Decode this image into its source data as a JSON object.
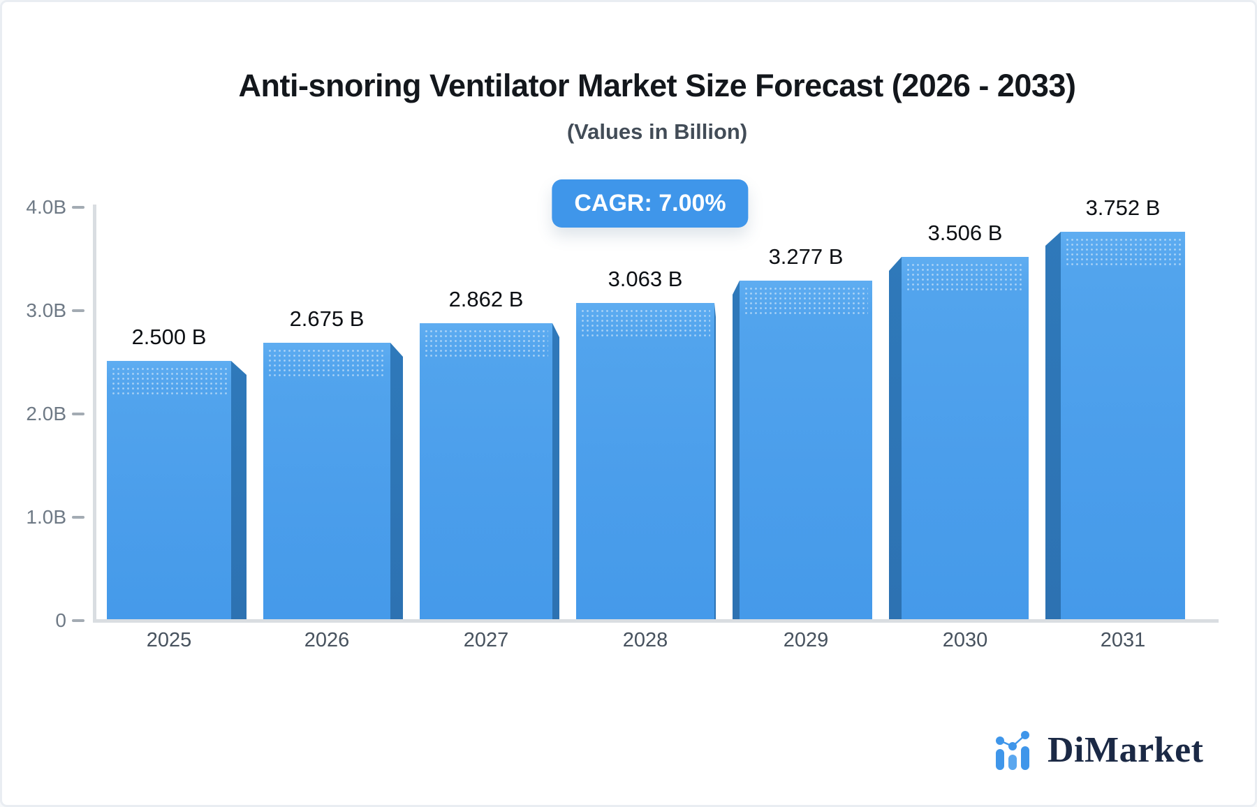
{
  "header": {
    "title": "Anti-snoring Ventilator Market Size Forecast (2026 - 2033)",
    "subtitle": "(Values in Billion)"
  },
  "badge": {
    "label": "CAGR: 7.00%",
    "color": "#3f96ea"
  },
  "chart_data": {
    "type": "bar",
    "categories": [
      "2025",
      "2026",
      "2027",
      "2028",
      "2029",
      "2030",
      "2031"
    ],
    "values": [
      2.5,
      2.675,
      2.862,
      3.063,
      3.277,
      3.506,
      3.752
    ],
    "bar_labels": [
      "2.500 B",
      "2.675 B",
      "2.862 B",
      "3.063 B",
      "3.277 B",
      "3.506 B",
      "3.752 B"
    ],
    "title": "Anti-snoring Ventilator Market Size Forecast (2026 - 2033)",
    "subtitle": "(Values in Billion)",
    "xlabel": "",
    "ylabel": "",
    "ylim": [
      0,
      4.0
    ],
    "yticks": [
      {
        "label": "4.0B",
        "value": 4.0
      },
      {
        "label": "3.0B",
        "value": 3.0
      },
      {
        "label": "2.0B",
        "value": 2.0
      },
      {
        "label": "1.0B",
        "value": 1.0
      },
      {
        "label": "0",
        "value": 0.0
      }
    ],
    "grid": false,
    "legend": false,
    "bar_color": "#4b9eeb",
    "bar_side_color": "#2e75b5",
    "annotation": "CAGR: 7.00%"
  },
  "logo": {
    "text": "DiMarket",
    "icon": "mini-bar-chart-icon",
    "icon_color": "#3f96ea",
    "text_color": "#1b2945"
  }
}
